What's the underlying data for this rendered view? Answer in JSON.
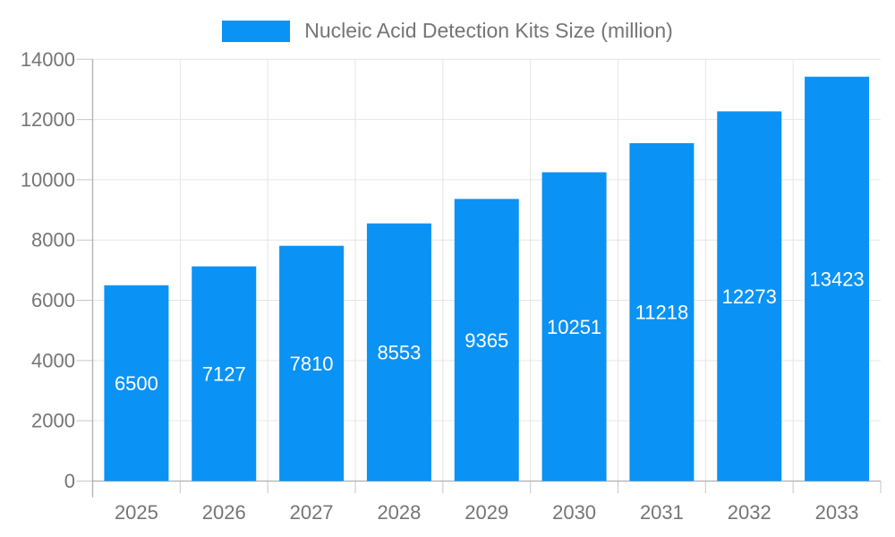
{
  "chart_data": {
    "type": "bar",
    "title": "Nucleic Acid Detection Kits Size (million)",
    "xlabel": "",
    "ylabel": "",
    "categories": [
      "2025",
      "2026",
      "2027",
      "2028",
      "2029",
      "2030",
      "2031",
      "2032",
      "2033"
    ],
    "series": [
      {
        "name": "Nucleic Acid Detection Kits Size (million)",
        "values": [
          6500,
          7127,
          7810,
          8553,
          9365,
          10251,
          11218,
          12273,
          13423
        ]
      }
    ],
    "values": [
      6500,
      7127,
      7810,
      8553,
      9365,
      10251,
      11218,
      12273,
      13423
    ],
    "bar_value_labels": [
      "6500",
      "7127",
      "7810",
      "8553",
      "9365",
      "10251",
      "11218",
      "12273",
      "13423"
    ],
    "ylim": [
      0,
      14000
    ],
    "ytick_step": 2000,
    "ytick_labels": [
      "0",
      "2000",
      "4000",
      "6000",
      "8000",
      "10000",
      "12000",
      "14000"
    ],
    "grid": true,
    "legend_position": "top-center",
    "colors": {
      "bar": "#0b92f5",
      "gridline": "#e6e6e6",
      "tick": "#c6c6c6",
      "axis_line": "#b0b0b0",
      "label_text": "#757575",
      "bar_label": "#ffffff",
      "background": "#ffffff"
    }
  }
}
